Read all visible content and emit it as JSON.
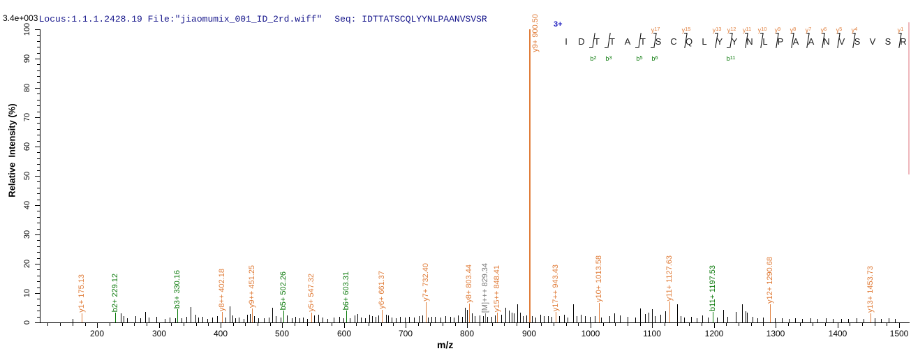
{
  "header": {
    "locus_file": "Locus:1.1.1.2428.19 File:\"jiaomumix_001_ID_2rd.wiff\"",
    "seq_label": "Seq: IDTTATSCQLYYNLPAANVSVSR",
    "base_peak_intensity": "3.4e+003"
  },
  "sequence_panel": {
    "charge": "3+",
    "residues": [
      "I",
      "D",
      "T",
      "T",
      "A",
      "T",
      "S",
      "C",
      "Q",
      "L",
      "Y",
      "Y",
      "N",
      "L",
      "P",
      "A",
      "A",
      "N",
      "V",
      "S",
      "V",
      "S",
      "R"
    ],
    "y_cuts": [
      {
        "before_index": 6,
        "prefix": "y",
        "num": "17"
      },
      {
        "before_index": 8,
        "prefix": "y",
        "num": "15"
      },
      {
        "before_index": 10,
        "prefix": "y",
        "num": "13"
      },
      {
        "before_index": 11,
        "prefix": "y",
        "num": "12"
      },
      {
        "before_index": 12,
        "prefix": "y",
        "num": "11"
      },
      {
        "before_index": 13,
        "prefix": "y",
        "num": "10"
      },
      {
        "before_index": 14,
        "prefix": "y",
        "num": "9"
      },
      {
        "before_index": 15,
        "prefix": "y",
        "num": "8"
      },
      {
        "before_index": 16,
        "prefix": "y",
        "num": "7"
      },
      {
        "before_index": 17,
        "prefix": "y",
        "num": "6"
      },
      {
        "before_index": 18,
        "prefix": "y",
        "num": "5"
      },
      {
        "before_index": 19,
        "prefix": "y",
        "num": "4"
      },
      {
        "before_index": 22,
        "prefix": "y",
        "num": "1"
      }
    ],
    "b_cuts": [
      {
        "before_index": 2,
        "prefix": "b",
        "num": "2"
      },
      {
        "before_index": 3,
        "prefix": "b",
        "num": "3"
      },
      {
        "before_index": 5,
        "prefix": "b",
        "num": "5"
      },
      {
        "before_index": 6,
        "prefix": "b",
        "num": "6"
      },
      {
        "before_index": 11,
        "prefix": "b",
        "num": "11"
      }
    ]
  },
  "chart_data": {
    "type": "bar",
    "title": "MS/MS fragmentation spectrum",
    "xlabel": "m/z",
    "ylabel": "Relative  Intensity (%)",
    "xlim": [
      107,
      1516
    ],
    "ylim": [
      0,
      100
    ],
    "x_ticks": {
      "major_start": 200,
      "major_end": 1500,
      "major_step": 100,
      "minor_step": 20
    },
    "y_ticks": {
      "major_start": 0,
      "major_end": 100,
      "major_step": 10,
      "minor_step": 2
    },
    "legend": "none",
    "grid": false,
    "labeled_peaks": [
      {
        "ion": "y1+",
        "mz": "175.13",
        "intensity": 2.0,
        "series": "y"
      },
      {
        "ion": "b2+",
        "mz": "229.12",
        "intensity": 2.2,
        "series": "b"
      },
      {
        "ion": "b3+",
        "mz": "330.16",
        "intensity": 3.4,
        "series": "b"
      },
      {
        "ion": "y8++",
        "mz": "402.18",
        "intensity": 2.4,
        "series": "y"
      },
      {
        "ion": "y9++",
        "mz": "451.25",
        "intensity": 3.6,
        "series": "y"
      },
      {
        "ion": "b5+",
        "mz": "502.26",
        "intensity": 2.8,
        "series": "b"
      },
      {
        "ion": "y5+",
        "mz": "547.32",
        "intensity": 2.2,
        "series": "y"
      },
      {
        "ion": "b6+",
        "mz": "603.31",
        "intensity": 2.8,
        "series": "b"
      },
      {
        "ion": "y6+",
        "mz": "661.37",
        "intensity": 3.2,
        "series": "y"
      },
      {
        "ion": "y7+",
        "mz": "732.40",
        "intensity": 5.6,
        "series": "y"
      },
      {
        "ion": "y8+",
        "mz": "803.44",
        "intensity": 5.2,
        "series": "y"
      },
      {
        "ion": "[M]+++",
        "mz": "829.34",
        "intensity": 1.8,
        "series": "precursor"
      },
      {
        "ion": "y15++",
        "mz": "848.41",
        "intensity": 2.2,
        "series": "y"
      },
      {
        "ion": "y9+",
        "mz": "900.50",
        "intensity": 100,
        "series": "y"
      },
      {
        "ion": "y17++",
        "mz": "943.43",
        "intensity": 2.4,
        "series": "y"
      },
      {
        "ion": "y10+",
        "mz": "1013.58",
        "intensity": 5.4,
        "series": "y"
      },
      {
        "ion": "y11+",
        "mz": "1127.63",
        "intensity": 6.0,
        "series": "y"
      },
      {
        "ion": "b11+",
        "mz": "1197.53",
        "intensity": 2.4,
        "series": "b"
      },
      {
        "ion": "y12+",
        "mz": "1290.68",
        "intensity": 5.0,
        "series": "y"
      },
      {
        "ion": "y13+",
        "mz": "1453.73",
        "intensity": 2.0,
        "series": "y"
      }
    ],
    "background_peaks": [
      [
        160,
        1.2
      ],
      [
        238,
        3.2
      ],
      [
        243,
        2.2
      ],
      [
        248,
        1.4
      ],
      [
        262,
        2.1
      ],
      [
        270,
        1.4
      ],
      [
        278,
        3.6
      ],
      [
        283,
        1.6
      ],
      [
        296,
        2.0
      ],
      [
        310,
        1.3
      ],
      [
        318,
        1.6
      ],
      [
        326,
        1.4
      ],
      [
        337,
        1.5
      ],
      [
        345,
        2.0
      ],
      [
        352,
        5.3
      ],
      [
        359,
        2.6
      ],
      [
        364,
        1.6
      ],
      [
        371,
        1.9
      ],
      [
        379,
        1.3
      ],
      [
        386,
        1.6
      ],
      [
        394,
        2.1
      ],
      [
        408,
        1.6
      ],
      [
        415,
        5.4
      ],
      [
        419,
        2.3
      ],
      [
        424,
        1.4
      ],
      [
        430,
        1.7
      ],
      [
        437,
        1.3
      ],
      [
        443,
        2.6
      ],
      [
        448,
        2.9
      ],
      [
        454,
        2.1
      ],
      [
        461,
        1.5
      ],
      [
        470,
        1.4
      ],
      [
        478,
        1.6
      ],
      [
        484,
        4.9
      ],
      [
        490,
        2.1
      ],
      [
        497,
        1.6
      ],
      [
        508,
        2.3
      ],
      [
        515,
        1.5
      ],
      [
        521,
        1.9
      ],
      [
        528,
        1.4
      ],
      [
        534,
        1.6
      ],
      [
        540,
        1.3
      ],
      [
        552,
        2.3
      ],
      [
        558,
        2.6
      ],
      [
        565,
        1.6
      ],
      [
        573,
        1.3
      ],
      [
        584,
        1.6
      ],
      [
        592,
        1.9
      ],
      [
        599,
        1.5
      ],
      [
        609,
        1.4
      ],
      [
        617,
        2.3
      ],
      [
        622,
        2.9
      ],
      [
        628,
        1.6
      ],
      [
        634,
        1.5
      ],
      [
        641,
        2.6
      ],
      [
        646,
        2.1
      ],
      [
        651,
        1.9
      ],
      [
        656,
        2.3
      ],
      [
        668,
        2.6
      ],
      [
        672,
        2.3
      ],
      [
        677,
        1.6
      ],
      [
        684,
        1.5
      ],
      [
        691,
        2.0
      ],
      [
        699,
        1.6
      ],
      [
        706,
        1.9
      ],
      [
        714,
        1.6
      ],
      [
        721,
        2.1
      ],
      [
        727,
        2.3
      ],
      [
        736,
        1.6
      ],
      [
        742,
        1.9
      ],
      [
        748,
        2.0
      ],
      [
        757,
        1.7
      ],
      [
        764,
        2.1
      ],
      [
        772,
        2.0
      ],
      [
        778,
        1.6
      ],
      [
        785,
        2.3
      ],
      [
        792,
        1.9
      ],
      [
        796,
        4.9
      ],
      [
        800,
        4.3
      ],
      [
        808,
        3.1
      ],
      [
        812,
        2.1
      ],
      [
        820,
        2.4
      ],
      [
        826,
        2.2
      ],
      [
        833,
        1.8
      ],
      [
        839,
        2.0
      ],
      [
        845,
        2.3
      ],
      [
        855,
        2.6
      ],
      [
        862,
        4.9
      ],
      [
        867,
        4.1
      ],
      [
        872,
        3.4
      ],
      [
        876,
        3.1
      ],
      [
        881,
        6.2
      ],
      [
        886,
        3.3
      ],
      [
        890,
        2.1
      ],
      [
        896,
        2.4
      ],
      [
        905,
        2.1
      ],
      [
        911,
        1.7
      ],
      [
        918,
        2.6
      ],
      [
        924,
        2.1
      ],
      [
        931,
        2.2
      ],
      [
        936,
        1.9
      ],
      [
        949,
        2.1
      ],
      [
        957,
        2.6
      ],
      [
        963,
        1.7
      ],
      [
        972,
        6.1
      ],
      [
        977,
        2.1
      ],
      [
        984,
        2.6
      ],
      [
        991,
        2.1
      ],
      [
        999,
        2.0
      ],
      [
        1007,
        2.2
      ],
      [
        1017,
        1.6
      ],
      [
        1030,
        2.1
      ],
      [
        1038,
        3.1
      ],
      [
        1048,
        2.4
      ],
      [
        1060,
        2.0
      ],
      [
        1072,
        1.7
      ],
      [
        1080,
        4.7
      ],
      [
        1088,
        2.9
      ],
      [
        1094,
        3.3
      ],
      [
        1099,
        4.6
      ],
      [
        1104,
        2.1
      ],
      [
        1113,
        2.6
      ],
      [
        1121,
        3.9
      ],
      [
        1140,
        6.3
      ],
      [
        1146,
        2.2
      ],
      [
        1152,
        1.6
      ],
      [
        1163,
        1.8
      ],
      [
        1172,
        1.4
      ],
      [
        1181,
        2.4
      ],
      [
        1190,
        1.6
      ],
      [
        1205,
        1.6
      ],
      [
        1215,
        4.4
      ],
      [
        1222,
        1.8
      ],
      [
        1235,
        3.6
      ],
      [
        1245,
        6.1
      ],
      [
        1251,
        3.9
      ],
      [
        1254,
        3.4
      ],
      [
        1262,
        1.8
      ],
      [
        1270,
        1.5
      ],
      [
        1280,
        1.6
      ],
      [
        1299,
        1.4
      ],
      [
        1310,
        1.5
      ],
      [
        1321,
        1.3
      ],
      [
        1332,
        1.5
      ],
      [
        1343,
        1.3
      ],
      [
        1356,
        1.4
      ],
      [
        1368,
        1.2
      ],
      [
        1381,
        1.4
      ],
      [
        1393,
        1.2
      ],
      [
        1406,
        1.3
      ],
      [
        1418,
        1.2
      ],
      [
        1431,
        1.4
      ],
      [
        1443,
        1.2
      ],
      [
        1461,
        1.5
      ],
      [
        1471,
        1.3
      ],
      [
        1483,
        1.5
      ],
      [
        1493,
        1.2
      ]
    ]
  },
  "colors": {
    "y_ion": "#E07D3A",
    "b_ion": "#0B7A0B",
    "precursor": "#7A7A7A",
    "peak": "#000000",
    "header_text": "#16168B",
    "charge": "#2020C0",
    "axis": "#000000"
  }
}
